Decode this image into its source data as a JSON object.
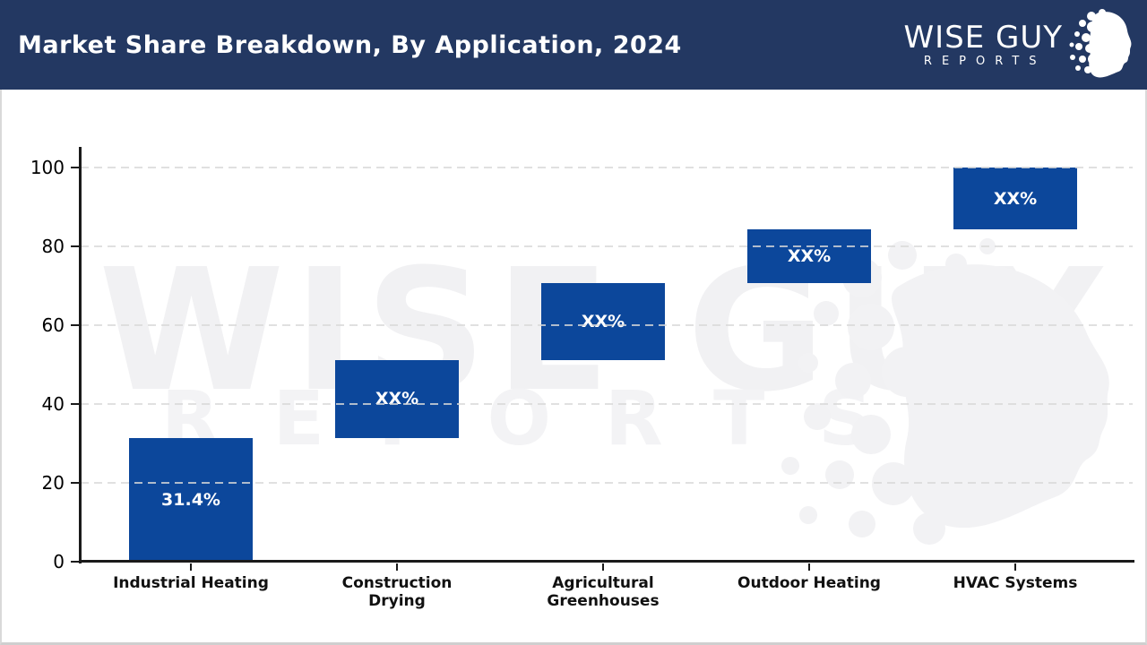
{
  "header": {
    "title": "Market Share Breakdown, By Application, 2024",
    "logo": {
      "line1": "WISE GUY",
      "line2": "REPORTS"
    }
  },
  "watermark": {
    "line1": "WISE GUY",
    "line2": "REPORTS"
  },
  "colors": {
    "header_bg": "#233862",
    "bar_fill": "#0c479b",
    "gridline": "#d9d9d9",
    "axis": "#1a1a1a",
    "watermark": "#f1f1f3"
  },
  "chart_data": {
    "type": "bar",
    "subtype": "waterfall",
    "title": "Market Share Breakdown, By Application, 2024",
    "xlabel": "",
    "ylabel": "",
    "ylim": [
      0,
      105
    ],
    "yticks": [
      0,
      20,
      40,
      60,
      80,
      100
    ],
    "grid": "horizontal-dashed",
    "legend": "none",
    "bar_color": "#0c479b",
    "categories": [
      "Industrial Heating",
      "Construction\nDrying",
      "Agricultural\nGreenhouses",
      "Outdoor Heating",
      "HVAC Systems"
    ],
    "bars": [
      {
        "category": "Industrial Heating",
        "start": 0,
        "end": 31.4,
        "label": "31.4%"
      },
      {
        "category": "Construction Drying",
        "start": 31.4,
        "end": 51.1,
        "label": "XX%"
      },
      {
        "category": "Agricultural Greenhouses",
        "start": 51.1,
        "end": 70.7,
        "label": "XX%"
      },
      {
        "category": "Outdoor Heating",
        "start": 70.7,
        "end": 84.3,
        "label": "XX%"
      },
      {
        "category": "HVAC Systems",
        "start": 84.3,
        "end": 100,
        "label": "XX%"
      }
    ]
  }
}
